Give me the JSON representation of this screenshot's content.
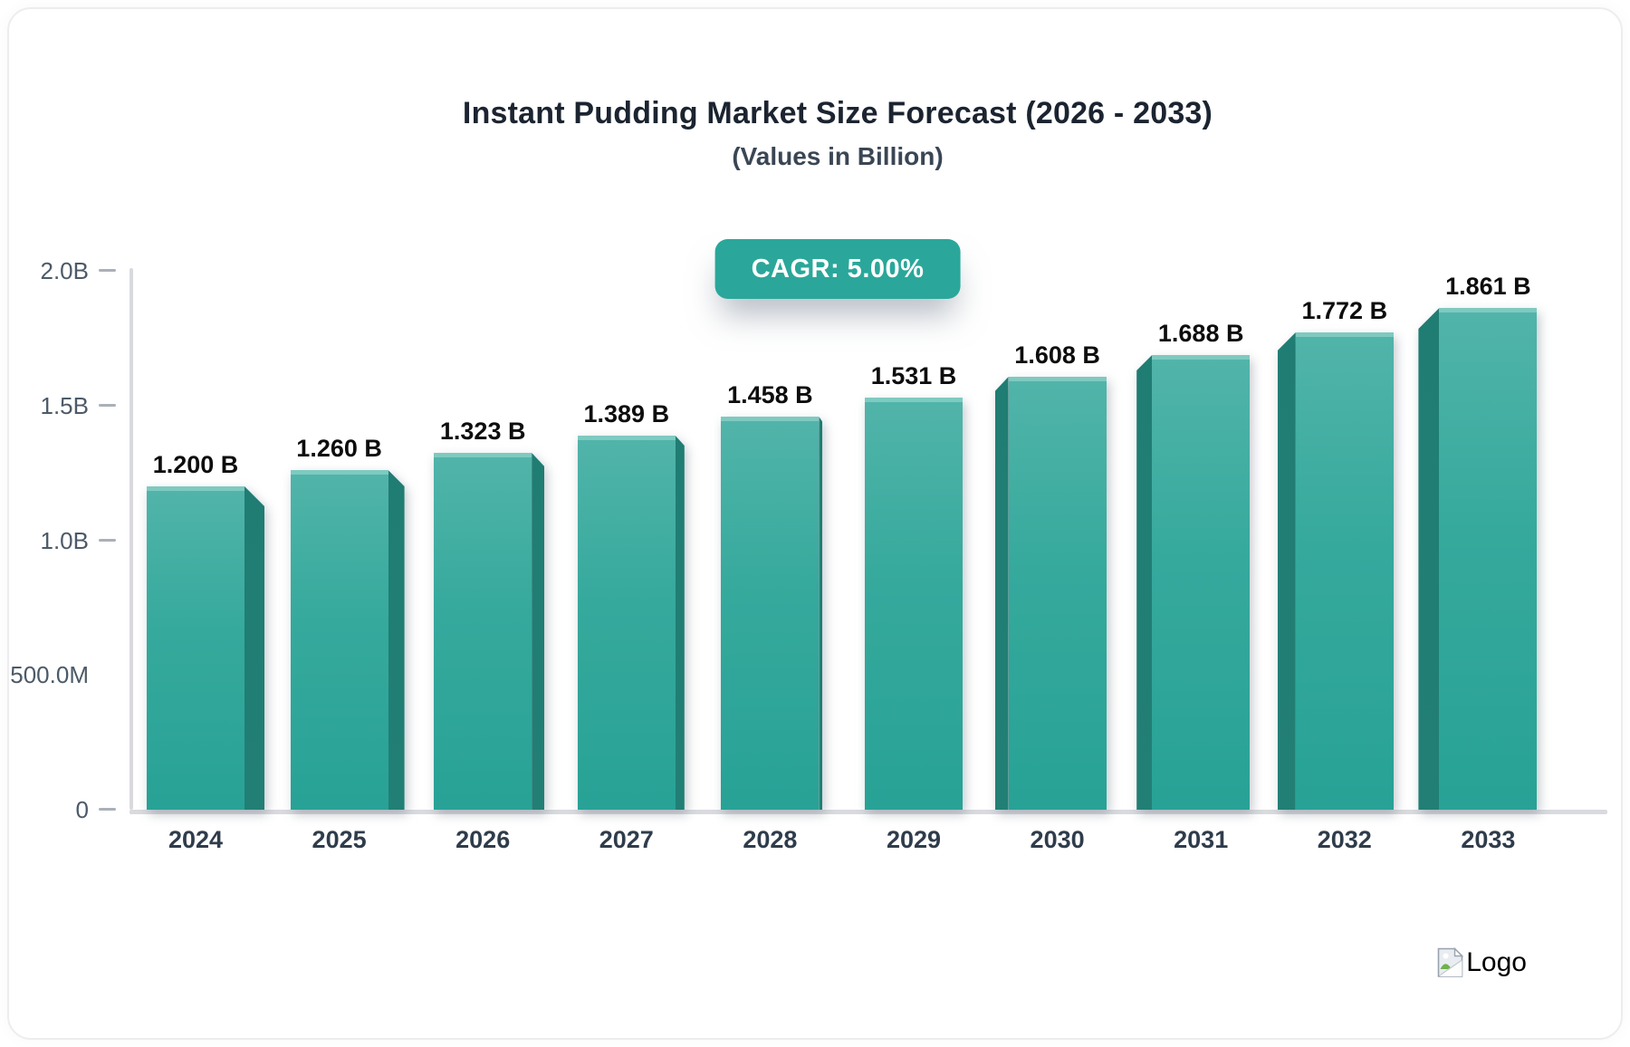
{
  "header": {
    "title": "Instant Pudding Market Size Forecast (2026 - 2033)",
    "subtitle": "(Values in Billion)"
  },
  "badge": {
    "label": "CAGR: 5.00%"
  },
  "logo": {
    "alt_text": "Logo"
  },
  "colors": {
    "accent_teal": "#2aa79a",
    "bar_front_top": "#52b4aa",
    "bar_front_bottom": "#28a296",
    "bar_top_edge": "#7ecac0",
    "bar_side_dark": "#1f7d73",
    "axis_line": "#d8dade",
    "tick_mark": "#aab0b8",
    "y_label": "#4c5a68",
    "x_label": "#2f3c4b",
    "value_label": "#0d0d0d",
    "title_text": "#1b2430",
    "subtitle_text": "#3a4654"
  },
  "chart_data": {
    "type": "bar",
    "title": "Instant Pudding Market Size Forecast (2026 - 2033)",
    "subtitle": "(Values in Billion)",
    "cagr_label": "CAGR: 5.00%",
    "categories": [
      "2024",
      "2025",
      "2026",
      "2027",
      "2028",
      "2029",
      "2030",
      "2031",
      "2032",
      "2033"
    ],
    "values_billion": [
      1.2,
      1.26,
      1.323,
      1.389,
      1.458,
      1.531,
      1.608,
      1.688,
      1.772,
      1.861
    ],
    "value_labels": [
      "1.200 B",
      "1.260 B",
      "1.323 B",
      "1.389 B",
      "1.458 B",
      "1.531 B",
      "1.608 B",
      "1.688 B",
      "1.772 B",
      "1.861 B"
    ],
    "y_axis": {
      "tick_labels": [
        "2.0B",
        "1.5B",
        "1.0B",
        "500.0M",
        "0"
      ],
      "tick_values_billion": [
        2.0,
        1.5,
        1.0,
        0.5,
        0
      ],
      "tick_mark_visible": [
        true,
        true,
        true,
        false,
        true
      ],
      "range_billion": [
        0,
        2.0
      ],
      "grid": false
    },
    "legend": false,
    "bar_color": "#2aa79a",
    "bar_style": "3d-bevel"
  }
}
